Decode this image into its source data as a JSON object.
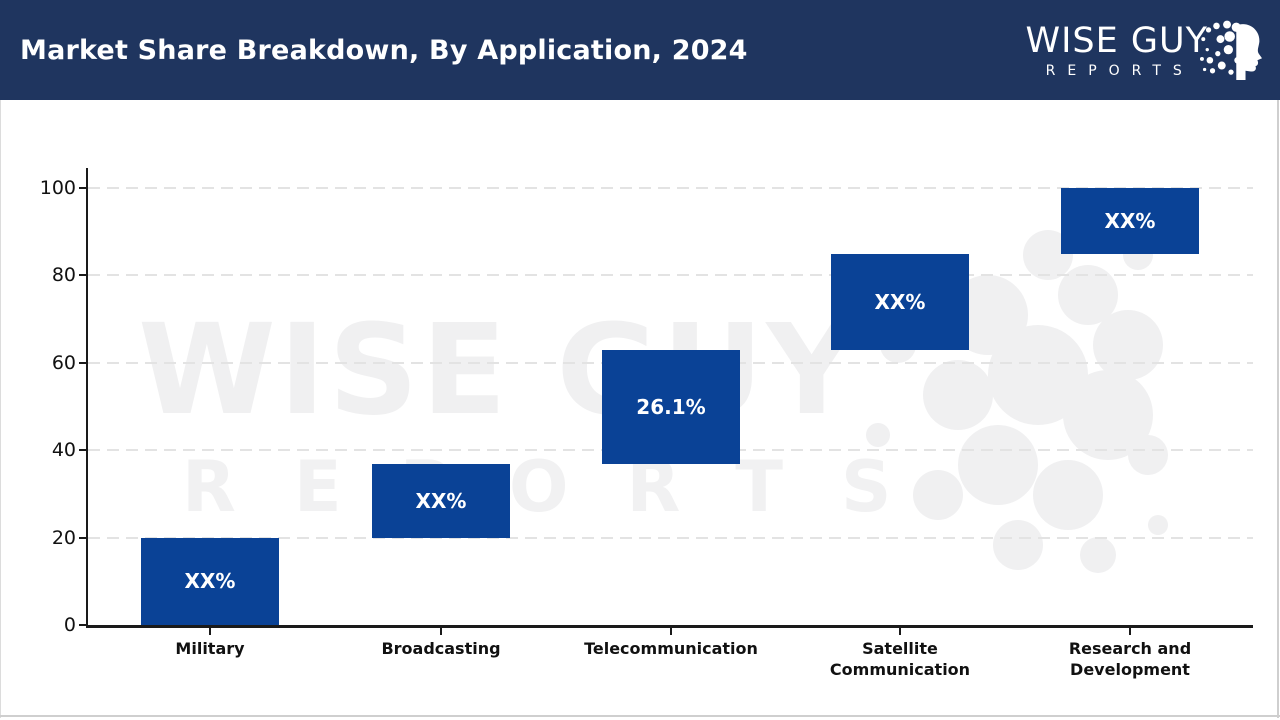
{
  "header": {
    "title": "Market Share Breakdown, By Application, 2024",
    "logo": {
      "line1": "WISE GUY",
      "line2": "REPORTS"
    }
  },
  "watermark": {
    "line1": "WISE GUY",
    "line2": "REPORTS"
  },
  "chart_data": {
    "type": "bar",
    "subtype": "waterfall-floating-bars",
    "title": "Market Share Breakdown, By Application, 2024",
    "categories": [
      "Military",
      "Broadcasting",
      "Telecommunication",
      "Satellite Communication",
      "Research and Development"
    ],
    "segments": [
      {
        "category": "Military",
        "start": 0,
        "end": 20,
        "label": "XX%"
      },
      {
        "category": "Broadcasting",
        "start": 20,
        "end": 36.9,
        "label": "XX%"
      },
      {
        "category": "Telecommunication",
        "start": 36.9,
        "end": 63,
        "label": "26.1%"
      },
      {
        "category": "Satellite Communication",
        "start": 63,
        "end": 85,
        "label": "XX%"
      },
      {
        "category": "Research and Development",
        "start": 85,
        "end": 100,
        "label": "XX%"
      }
    ],
    "xlabel": "",
    "ylabel": "",
    "ylim": [
      0,
      100
    ],
    "yticks": [
      0,
      20,
      40,
      60,
      80,
      100
    ],
    "grid": "horizontal-dashed",
    "legend": "none"
  },
  "colors": {
    "header_bg": "#1F355F",
    "bar": "#0A4296",
    "bar_label": "#FFFFFF",
    "grid": "#E3E3E3",
    "axis": "#1A1A1A",
    "watermark": "#F0F0F1",
    "frame": "#CFCFCF",
    "title_text": "#FFFFFF"
  }
}
